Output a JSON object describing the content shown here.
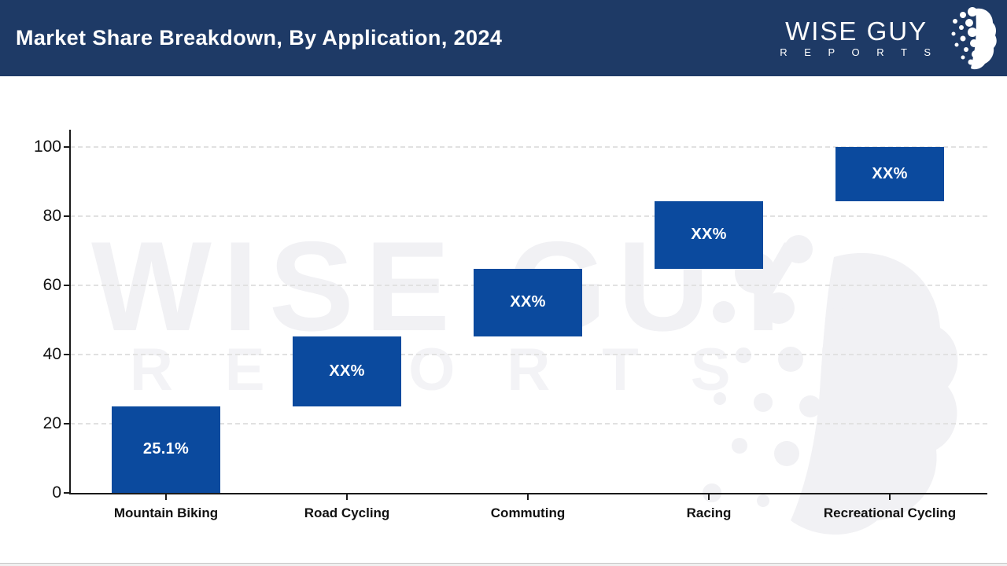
{
  "header": {
    "title": "Market Share Breakdown, By Application, 2024",
    "brand": {
      "line1": "WISE GUY",
      "line2": "R E P O R T S"
    },
    "bg_color": "#1e3a66"
  },
  "watermark": {
    "line1": "WISE GUY",
    "line2": "REPORTS"
  },
  "chart_data": {
    "type": "bar",
    "subtype": "waterfall",
    "title": "Market Share Breakdown, By Application, 2024",
    "categories": [
      "Mountain Biking",
      "Road Cycling",
      "Commuting",
      "Racing",
      "Recreational Cycling"
    ],
    "bars": [
      {
        "category": "Mountain Biking",
        "label": "25.1%",
        "start": 0,
        "end": 25.1
      },
      {
        "category": "Road Cycling",
        "label": "XX%",
        "start": 25.1,
        "end": 45.2
      },
      {
        "category": "Commuting",
        "label": "XX%",
        "start": 45.2,
        "end": 64.8
      },
      {
        "category": "Racing",
        "label": "XX%",
        "start": 64.8,
        "end": 84.3
      },
      {
        "category": "Recreational Cycling",
        "label": "XX%",
        "start": 84.3,
        "end": 100
      }
    ],
    "xlabel": "",
    "ylabel": "",
    "yticks": [
      0,
      20,
      40,
      60,
      80,
      100
    ],
    "ylim": [
      0,
      104.5
    ],
    "grid": "horizontal-dashed",
    "legend": "none",
    "bar_color": "#0b4a9e",
    "bar_label_color": "#ffffff",
    "axis_color": "#1a1a1a"
  }
}
